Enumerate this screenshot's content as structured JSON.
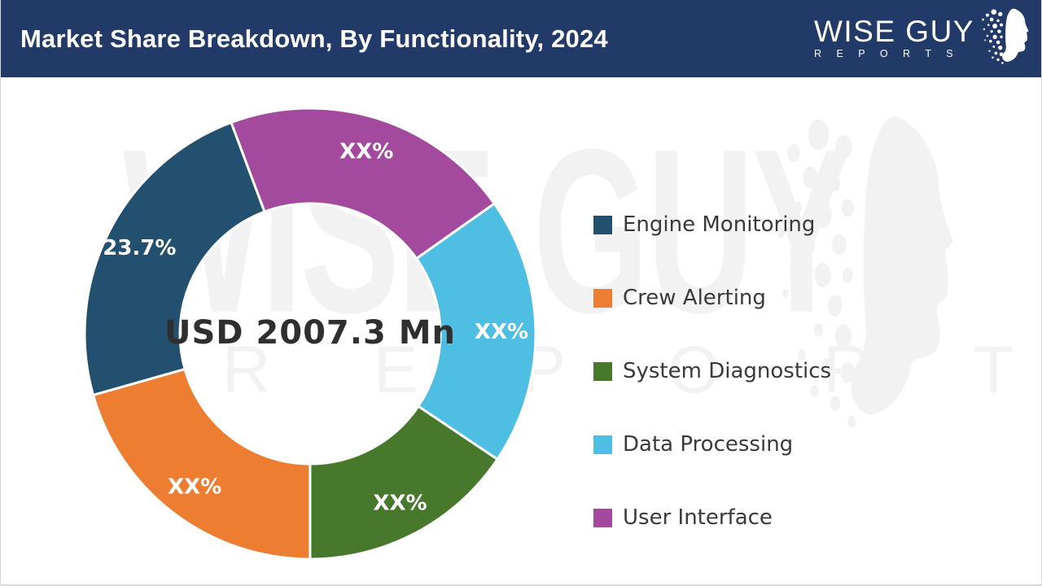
{
  "header": {
    "title": "Market Share Breakdown, By Functionality, 2024",
    "bg_color": "#223A67",
    "logo": {
      "line1": "WISE GUY",
      "line2": "R E P O R T S"
    }
  },
  "watermark": {
    "line1": "WISE GUY",
    "line2": "R E P O R T S"
  },
  "chart_data": {
    "type": "donut",
    "title": "Market Share Breakdown, By Functionality, 2024",
    "center_label": "USD 2007.3 Mn",
    "unit": "percent share",
    "rotation_deg": 339.5,
    "direction": "counterclockwise",
    "inner_radius_ratio": 0.577,
    "legend_position": "right",
    "slice_gap_color": "#ffffff",
    "segments": [
      {
        "name": "Engine Monitoring",
        "value": 23.7,
        "label": "23.7%",
        "color": "#24506F"
      },
      {
        "name": "Crew Alerting",
        "value": 20.6,
        "label": "XX%",
        "color": "#ED7D31"
      },
      {
        "name": "System Diagnostics",
        "value": 15.6,
        "label": "XX%",
        "color": "#47782C"
      },
      {
        "name": "Data Processing",
        "value": 19.2,
        "label": "XX%",
        "color": "#4FBEE3"
      },
      {
        "name": "User Interface",
        "value": 20.9,
        "label": "XX%",
        "color": "#A3499E"
      }
    ]
  }
}
